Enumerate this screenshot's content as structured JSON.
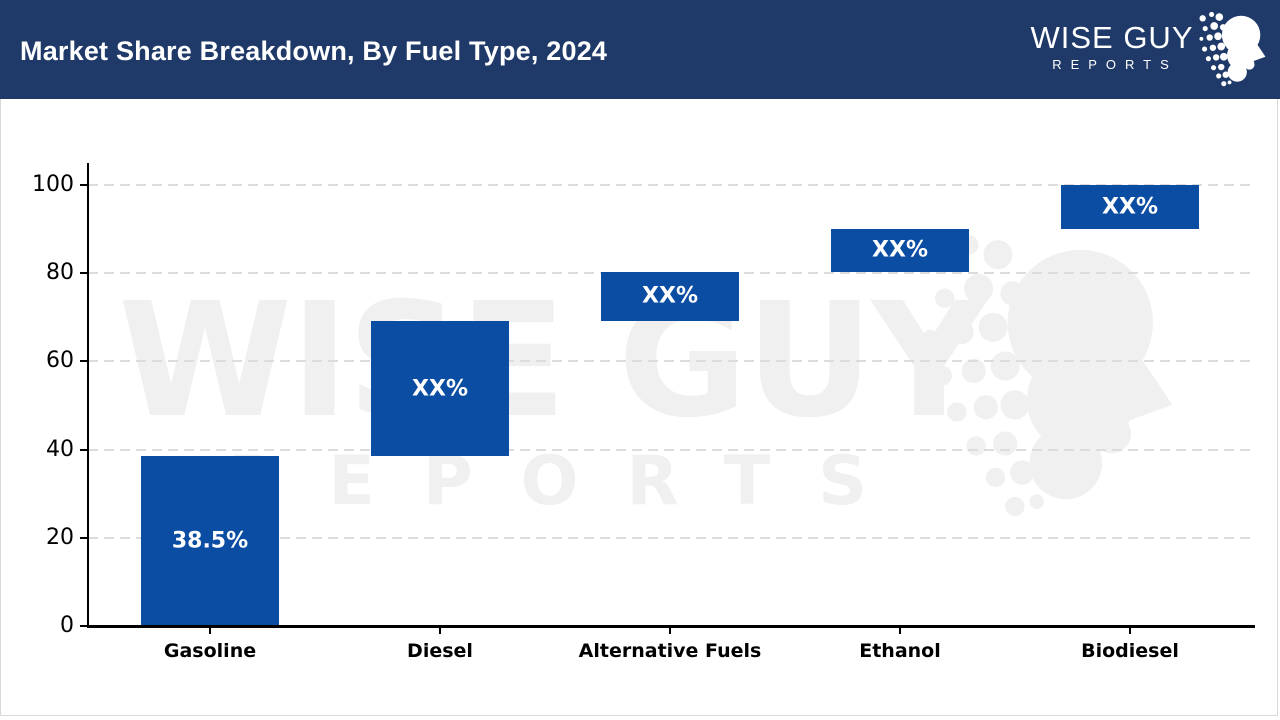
{
  "header": {
    "title": "Market Share Breakdown, By Fuel Type, 2024",
    "logo": {
      "line1": "WISE GUY",
      "line2": "REPORTS"
    }
  },
  "watermark": {
    "line1": "WISE GUY",
    "line2": "REPORTS"
  },
  "colors": {
    "header_bg": "#1f3a68",
    "bar": "#0b4da2",
    "grid": "#dcdcdc",
    "watermark": "#f0f0f0",
    "border": "#d9d9d9",
    "axis": "#000000",
    "bar_value_label": "#ffffff",
    "title_text": "#ffffff"
  },
  "chart_data": {
    "type": "bar",
    "subtype": "waterfall",
    "title": "Market Share Breakdown, By Fuel Type, 2024",
    "xlabel": "",
    "ylabel": "",
    "ylim": [
      0,
      105
    ],
    "yticks": [
      0,
      20,
      40,
      60,
      80,
      100
    ],
    "grid": "horizontal-dashed",
    "legend": "none",
    "categories": [
      "Gasoline",
      "Diesel",
      "Alternative Fuels",
      "Ethanol",
      "Biodiesel"
    ],
    "bars": [
      {
        "category": "Gasoline",
        "start": 0,
        "end": 38.5,
        "label": "38.5%"
      },
      {
        "category": "Diesel",
        "start": 38.5,
        "end": 69.2,
        "label": "XX%"
      },
      {
        "category": "Alternative Fuels",
        "start": 69.2,
        "end": 80.3,
        "label": "XX%"
      },
      {
        "category": "Ethanol",
        "start": 80.3,
        "end": 90.1,
        "label": "XX%"
      },
      {
        "category": "Biodiesel",
        "start": 90.1,
        "end": 100,
        "label": "XX%"
      }
    ]
  }
}
